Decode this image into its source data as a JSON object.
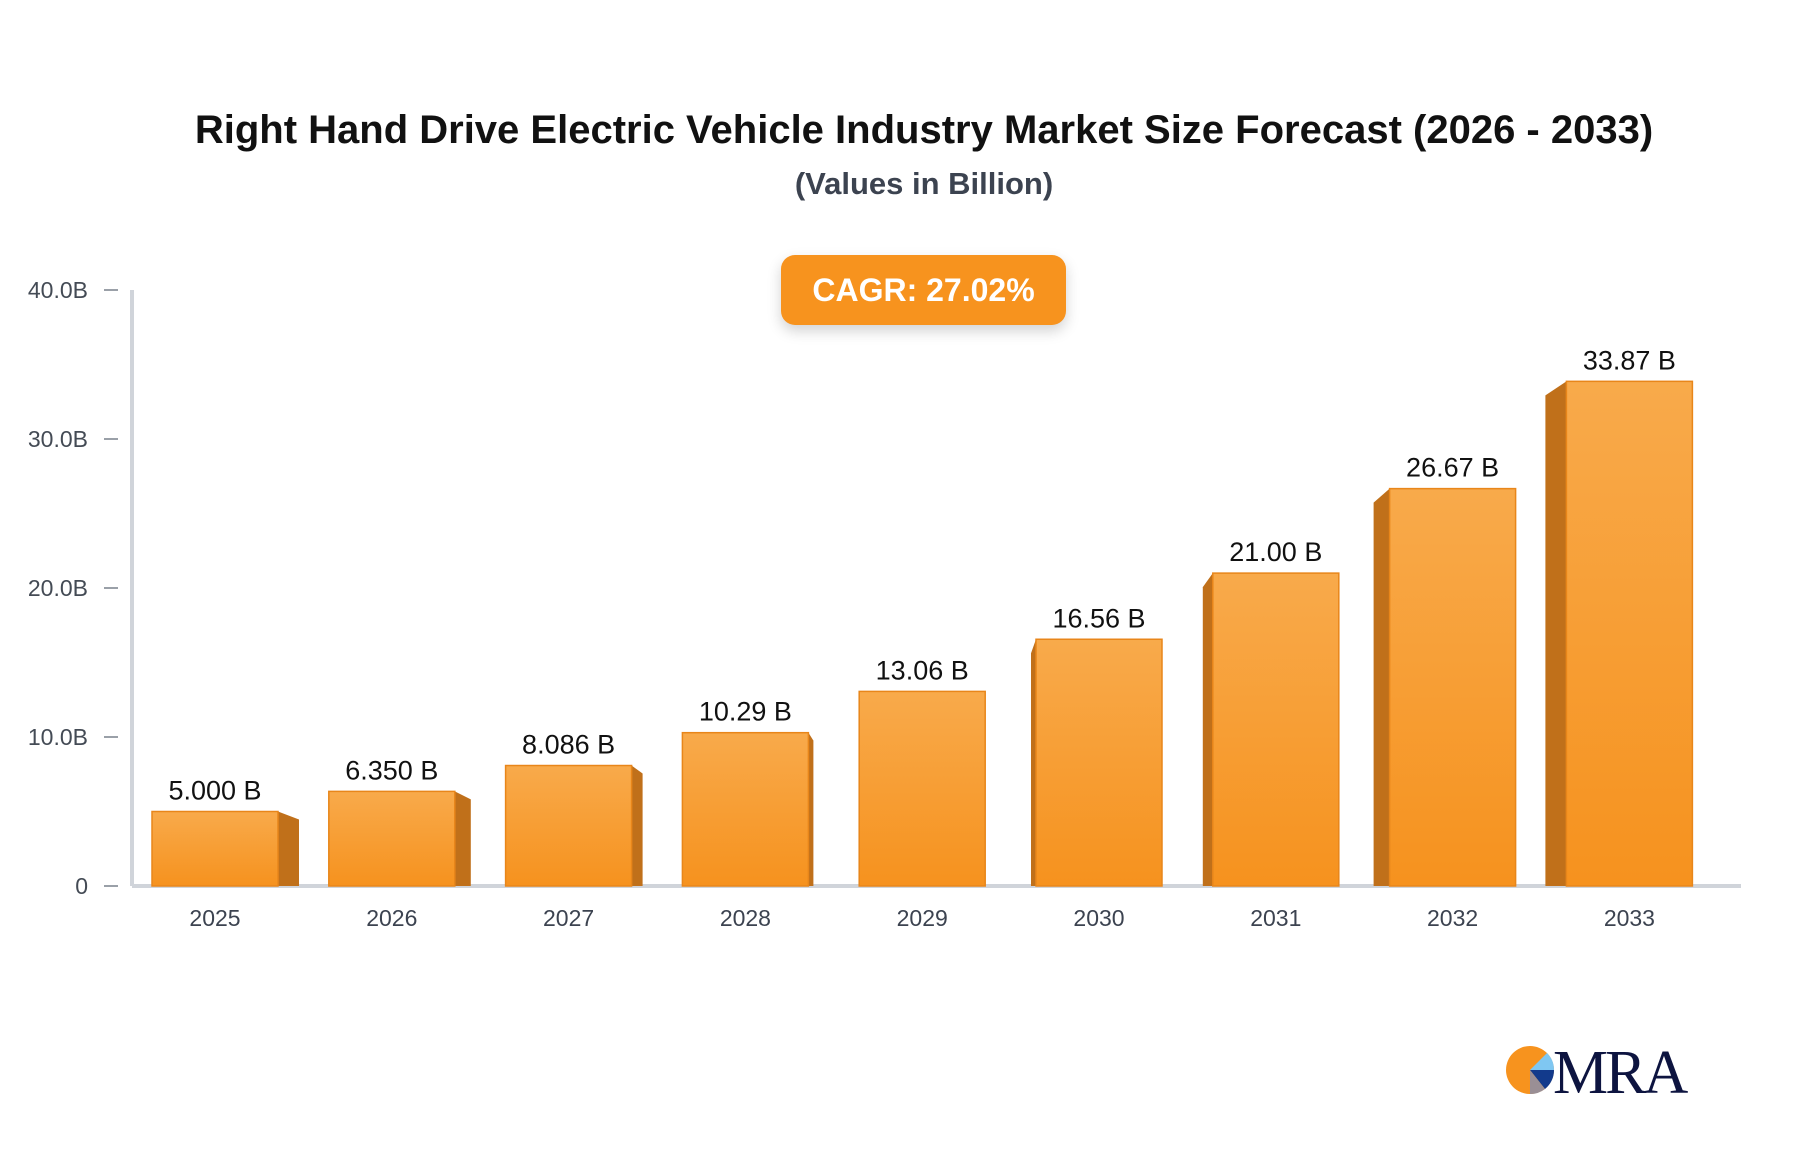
{
  "chart_data": {
    "type": "bar",
    "title": "Right Hand Drive Electric Vehicle Industry Market Size Forecast (2026 - 2033)",
    "subtitle": "(Values in Billion)",
    "annotation": "CAGR: 27.02%",
    "categories": [
      "2025",
      "2026",
      "2027",
      "2028",
      "2029",
      "2030",
      "2031",
      "2032",
      "2033"
    ],
    "values": [
      5.0,
      6.35,
      8.086,
      10.29,
      13.06,
      16.56,
      21.0,
      26.67,
      33.87
    ],
    "data_labels": [
      "5.000 B",
      "6.350 B",
      "8.086 B",
      "10.29 B",
      "13.06 B",
      "16.56 B",
      "21.00 B",
      "26.67 B",
      "33.87 B"
    ],
    "ylim": [
      0,
      40
    ],
    "yticks": [
      0,
      10,
      20,
      30,
      40
    ],
    "ytick_labels": [
      "0",
      "10.0B",
      "20.0B",
      "30.0B",
      "40.0B"
    ],
    "xlabel": "",
    "ylabel": "",
    "grid": false,
    "bar_style": "3d",
    "colors": {
      "bar_top": "#f8aa4b",
      "bar_bottom": "#f6921e",
      "bar_side": "#c0701a",
      "axis": "#d0d4da"
    }
  },
  "logo": {
    "text": "MRA"
  }
}
